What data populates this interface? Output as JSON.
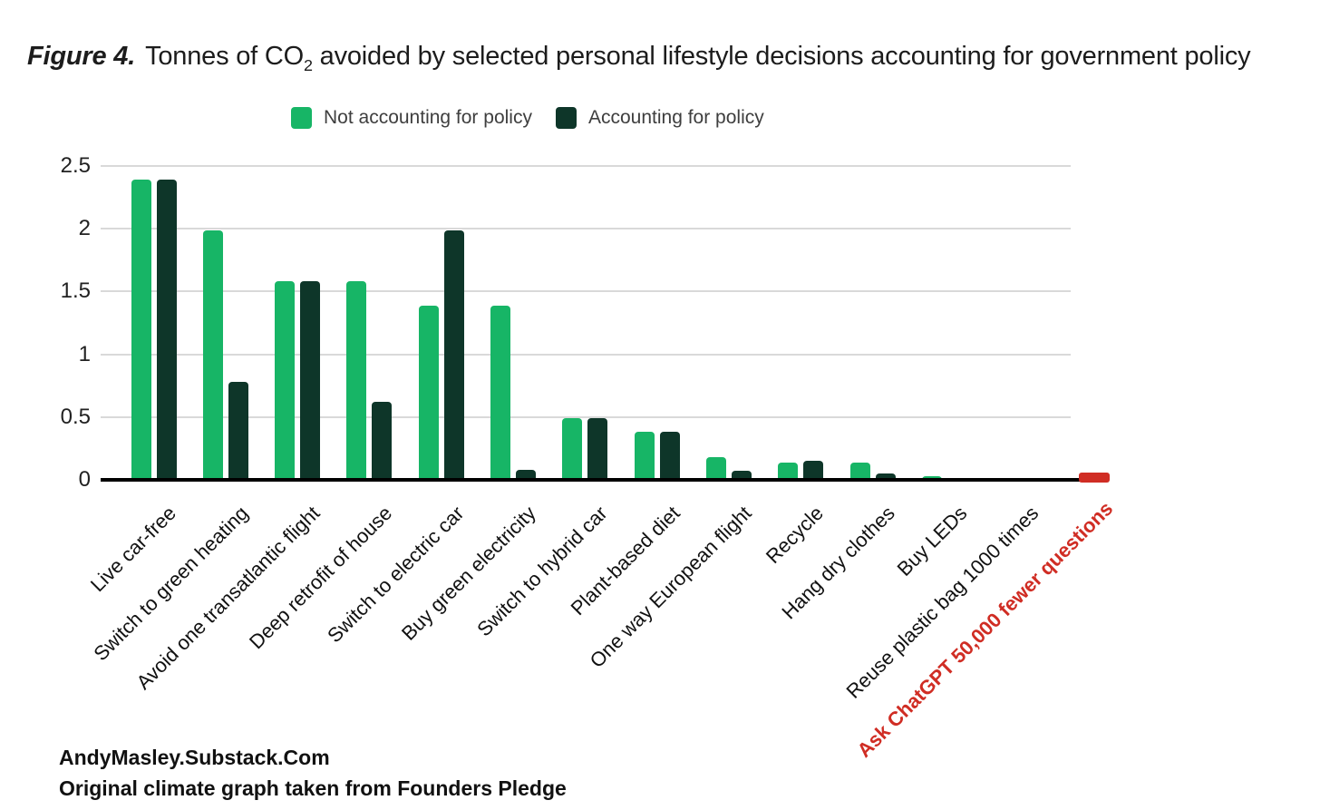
{
  "title": {
    "figure_label": "Figure 4.",
    "pre": "Tonnes of CO",
    "sub": "2",
    "post": " avoided by selected personal lifestyle decisions accounting for government policy"
  },
  "legend": [
    {
      "label": "Not accounting for policy",
      "color": "#17b566"
    },
    {
      "label": "Accounting for policy",
      "color": "#0e3629"
    }
  ],
  "footer": {
    "line1": "AndyMasley.Substack.Com",
    "line2": "Original climate graph taken from Founders Pledge"
  },
  "colors": {
    "not_accounting_green": "#17b566",
    "accounting_dark_green": "#0e3629",
    "annotation_red": "#d02d24",
    "gridline_gray": "#d9d9d9",
    "axis_black": "#000000"
  },
  "chart_data": {
    "type": "bar",
    "title": "Figure 4. Tonnes of CO2 avoided by selected personal lifestyle decisions accounting for government policy",
    "xlabel": "",
    "ylabel": "Tonnes of CO2 avoided",
    "ylim": [
      0,
      2.5
    ],
    "yticks": [
      0,
      0.5,
      1,
      1.5,
      2,
      2.5
    ],
    "grid": true,
    "legend_position": "top",
    "categories": [
      "Live car-free",
      "Switch to green heating",
      "Avoid one transatlantic flight",
      "Deep retrofit of house",
      "Switch to electric car",
      "Buy green electricity",
      "Switch to hybrid car",
      "Plant-based diet",
      "One way European flight",
      "Recycle",
      "Hang dry clothes",
      "Buy LEDs",
      "Reuse plastic bag 1000 times"
    ],
    "series": [
      {
        "name": "Not accounting for policy",
        "color": "#17b566",
        "values": [
          2.39,
          1.99,
          1.58,
          1.58,
          1.39,
          1.39,
          0.49,
          0.38,
          0.18,
          0.14,
          0.14,
          0.03,
          0
        ]
      },
      {
        "name": "Accounting for policy",
        "color": "#0e3629",
        "values": [
          2.39,
          0.78,
          1.58,
          0.62,
          1.99,
          0.08,
          0.49,
          0.38,
          0.07,
          0.15,
          0.05,
          0.01,
          0
        ]
      }
    ],
    "annotation": {
      "label": "Ask ChatGPT 50,000 fewer questions",
      "value": 0.06,
      "color": "#d02d24"
    }
  }
}
